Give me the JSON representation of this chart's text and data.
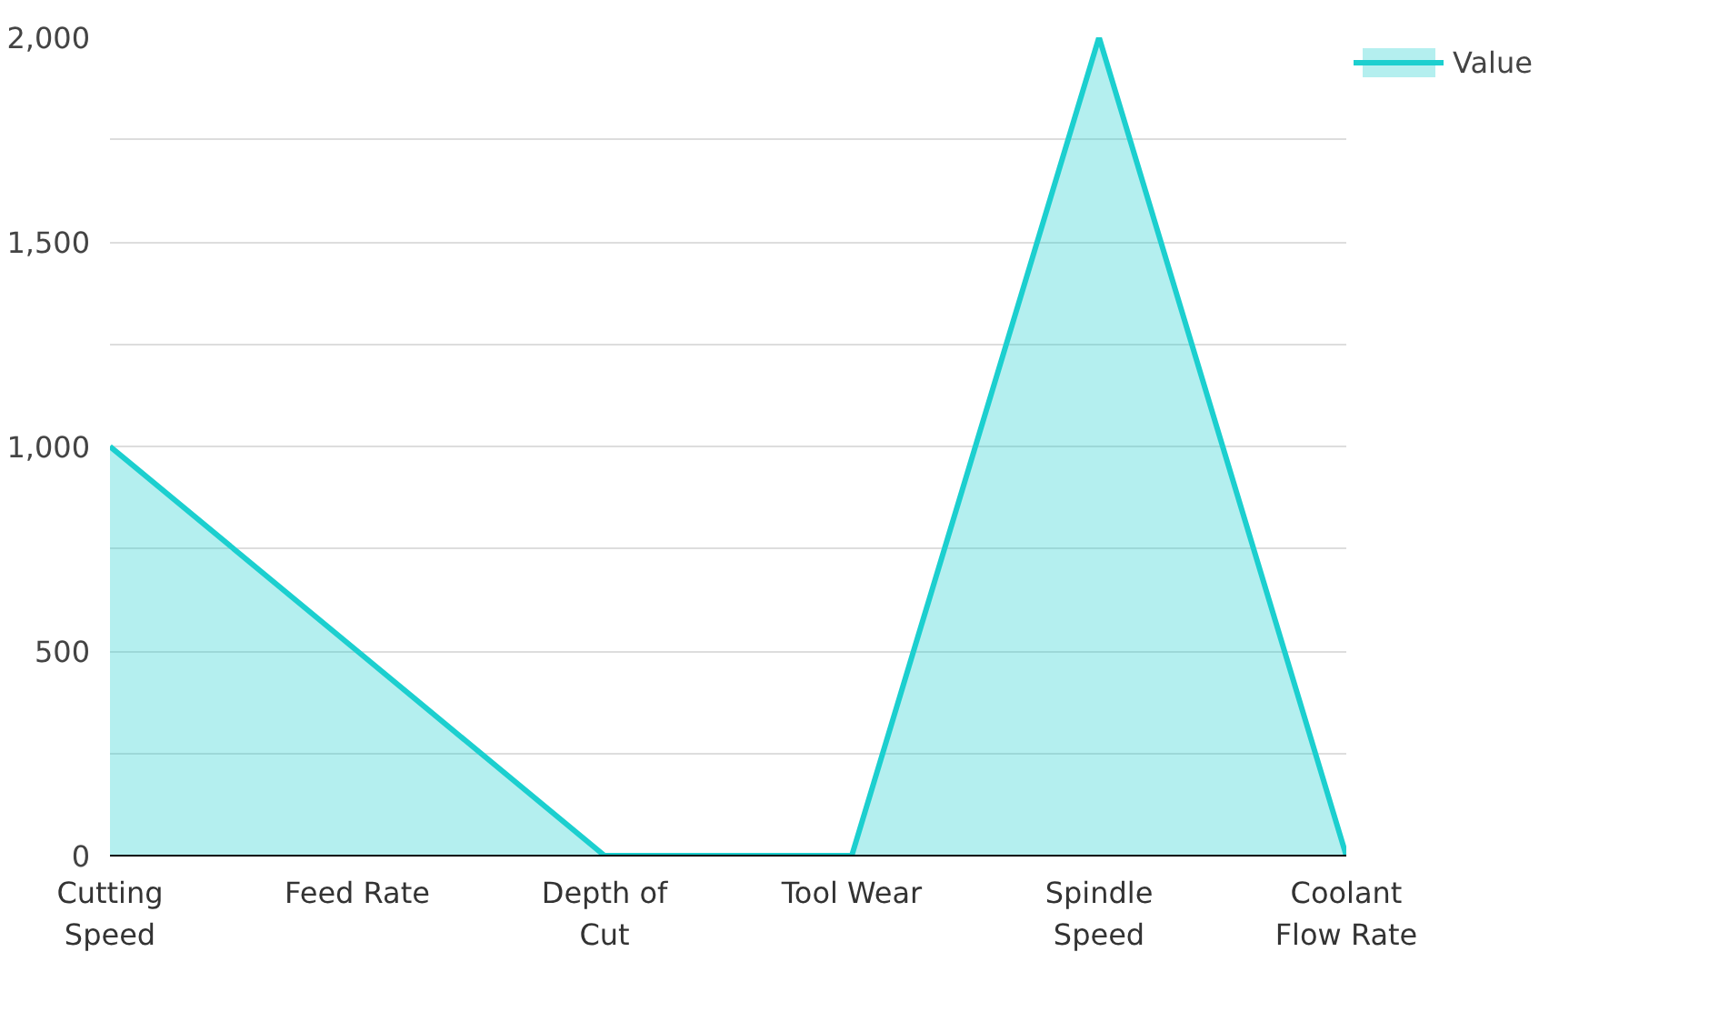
{
  "chart_data": {
    "type": "area",
    "categories": [
      "Cutting Speed",
      "Feed Rate",
      "Depth of Cut",
      "Tool Wear",
      "Spindle Speed",
      "Coolant Flow Rate"
    ],
    "series": [
      {
        "name": "Value",
        "color": "#1ccfcf",
        "values": [
          1000,
          500,
          0,
          0,
          2000,
          0
        ]
      }
    ],
    "ylim": [
      0,
      2000
    ],
    "yticks": [
      0,
      {
        "value": 250,
        "label": null
      },
      500,
      {
        "value": 750,
        "label": null
      },
      {
        "value": 1000,
        "label": "1,000"
      },
      {
        "value": 1250,
        "label": null
      },
      {
        "value": 1500,
        "label": "1,500"
      },
      {
        "value": 1750,
        "label": null
      },
      {
        "value": 2000,
        "label": "2,000"
      }
    ],
    "grid": "y",
    "legend": "top right"
  }
}
